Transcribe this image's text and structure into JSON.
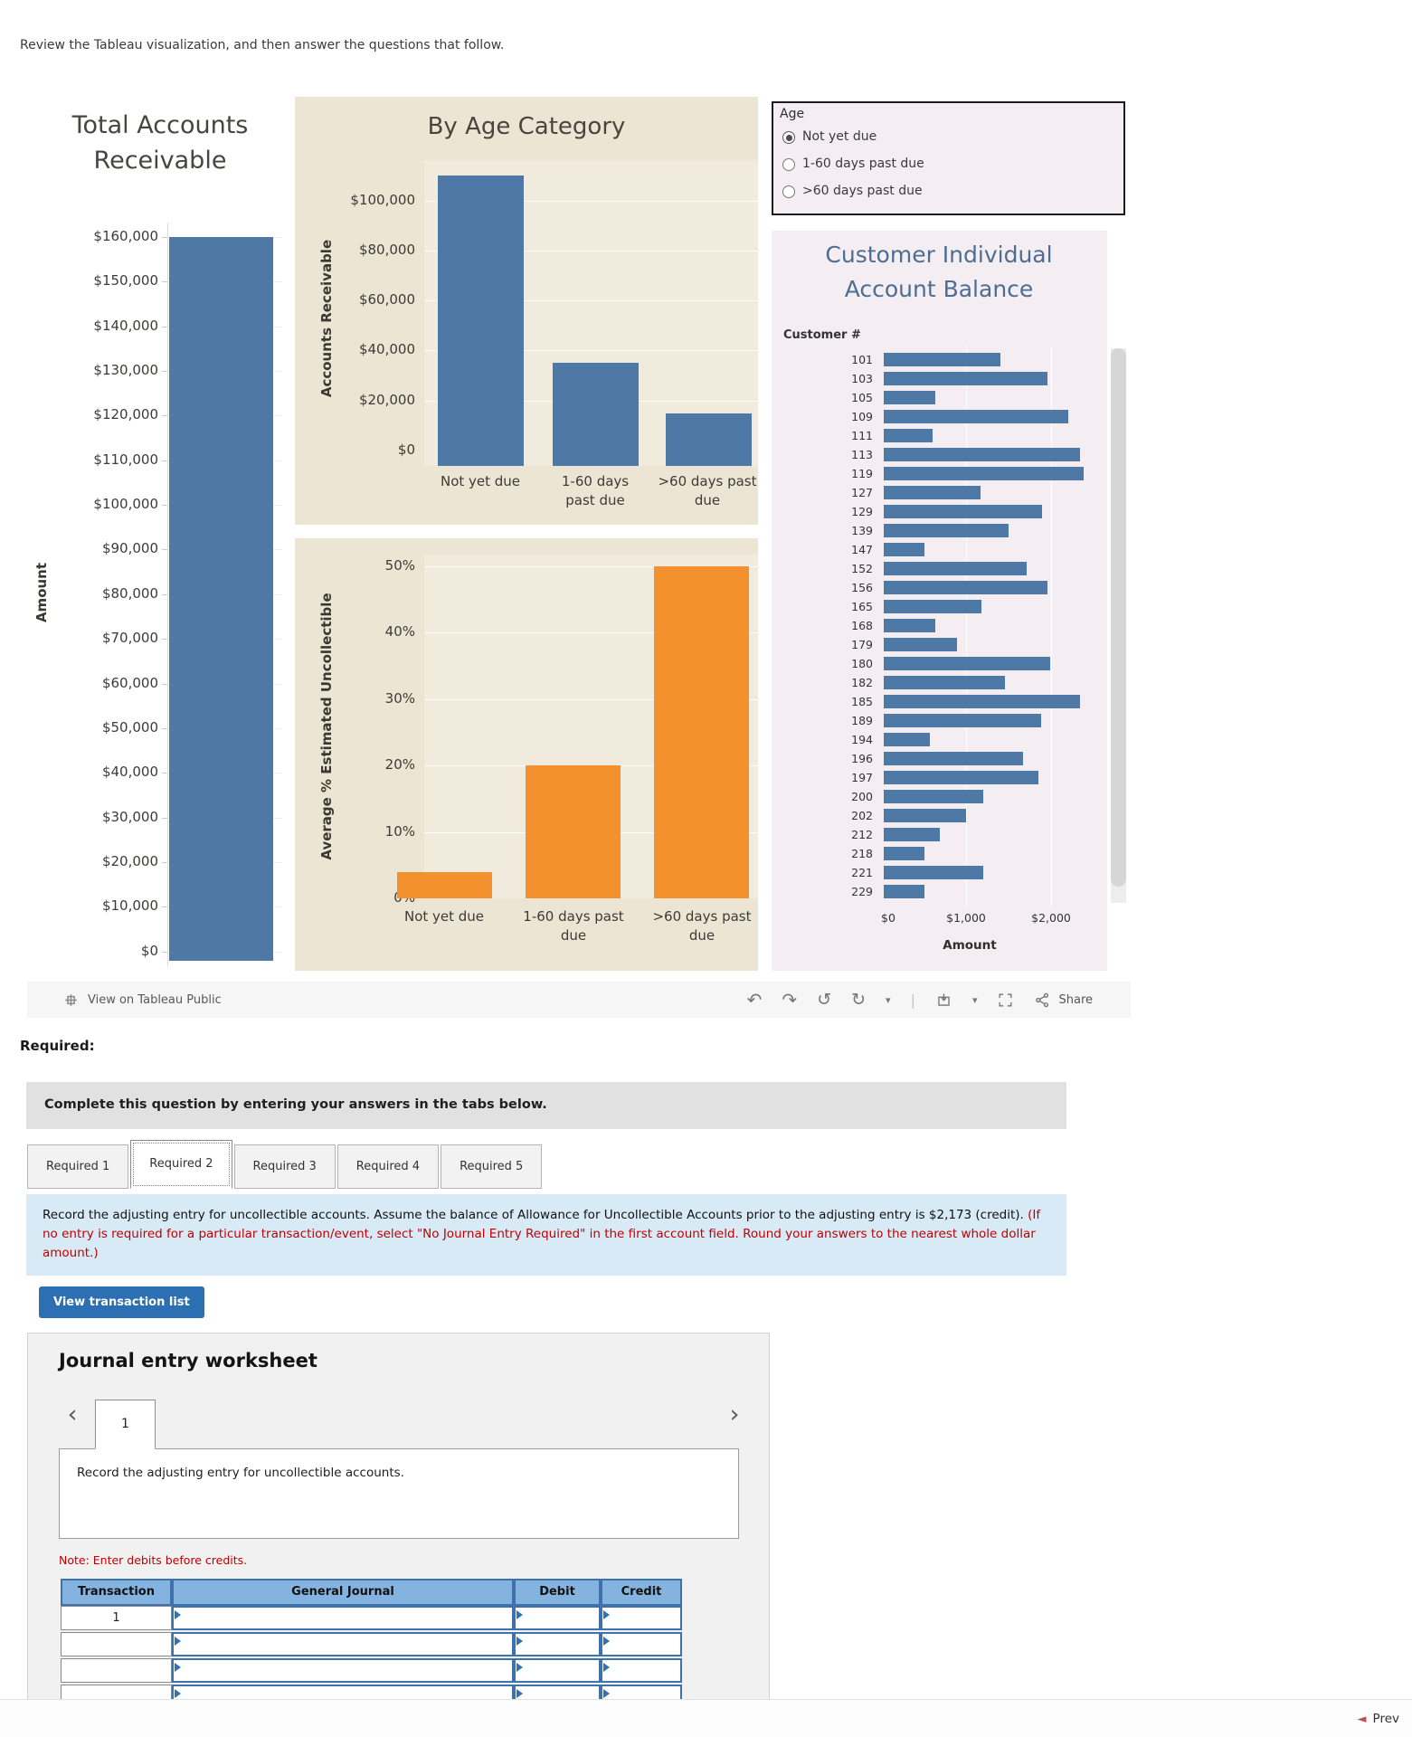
{
  "page": {
    "instruction": "Review the Tableau visualization, and then answer the questions that follow.",
    "required_label": "Required:",
    "banner": "Complete this question by entering your answers in the tabs below.",
    "prev_label": "Prev"
  },
  "colors": {
    "bar_blue": "#4e79a7",
    "bar_orange": "#f2912d",
    "beige_panel": "#ece5d4",
    "beige_plot": "#f0ebdc",
    "pink_panel": "#f4eef2",
    "table_header_blue": "#85b3df",
    "table_border_blue": "#3f72ab",
    "button_blue": "#2d6fb3",
    "info_box_blue": "#d9eaf7",
    "red_text": "#c00000"
  },
  "icons": {
    "chevron_left": "‹",
    "chevron_right": "›",
    "caret_down": "▾",
    "undo": "↶",
    "redo": "↷",
    "revert": "↺",
    "refresh": "↻",
    "prev_arrow": "◄",
    "toolbar_divider": "|"
  },
  "viz": {
    "toolbar": {
      "view_public_label": "View on Tableau Public",
      "share_label": "Share"
    },
    "age_filter": {
      "title": "Age",
      "options": [
        "Not yet due",
        "1-60 days past due",
        ">60 days past due"
      ],
      "selected_index": 0
    }
  },
  "chart_data": [
    {
      "id": "total_accounts_receivable",
      "type": "bar",
      "title": "Total Accounts Receivable",
      "ylabel": "Amount",
      "categories": [
        ""
      ],
      "values": [
        160000
      ],
      "ylim": [
        0,
        160000
      ],
      "ytick_step": 10000,
      "grid": true,
      "legend": false
    },
    {
      "id": "by_age_category",
      "type": "bar",
      "title": "By Age Category",
      "ylabel": "Accounts Receivable",
      "categories": [
        "Not yet due",
        "1-60 days past due",
        ">60 days past due"
      ],
      "categories_display": [
        [
          "Not yet due"
        ],
        [
          "1-60 days",
          "past due"
        ],
        [
          ">60 days past",
          "due"
        ]
      ],
      "values": [
        110000,
        35000,
        15000
      ],
      "ylim": [
        0,
        115000
      ],
      "ytick_step": 20000,
      "ytick_max": 100000
    },
    {
      "id": "average_pct_estimated_uncollectible",
      "type": "bar",
      "title": "",
      "ylabel": "Average % Estimated Uncollectible",
      "categories": [
        "Not yet due",
        "1-60 days past due",
        ">60 days past due"
      ],
      "categories_display": [
        [
          "Not yet due"
        ],
        [
          "1-60 days past",
          "due"
        ],
        [
          ">60 days past",
          "due"
        ]
      ],
      "values": [
        4,
        20,
        50
      ],
      "unit": "%",
      "ylim": [
        0,
        52
      ],
      "ytick_step": 10,
      "ytick_max": 50
    },
    {
      "id": "customer_individual_account_balance",
      "type": "bar",
      "orientation": "horizontal",
      "title": "Customer Individual Account Balance",
      "row_header": "Customer #",
      "xlabel": "Amount",
      "xlim": [
        0,
        2700
      ],
      "xticks": [
        0,
        1000,
        2000
      ],
      "categories": [
        "101",
        "103",
        "105",
        "109",
        "111",
        "113",
        "119",
        "127",
        "129",
        "139",
        "147",
        "152",
        "156",
        "165",
        "168",
        "179",
        "180",
        "182",
        "185",
        "189",
        "194",
        "196",
        "197",
        "200",
        "202",
        "212",
        "218",
        "221",
        "229"
      ],
      "values": [
        1430,
        2000,
        630,
        2250,
        600,
        2400,
        2440,
        1180,
        1930,
        1520,
        500,
        1750,
        2000,
        1190,
        630,
        890,
        2030,
        1480,
        2400,
        1920,
        560,
        1700,
        1890,
        1220,
        1010,
        690,
        500,
        1220,
        500
      ]
    }
  ],
  "tabs": {
    "items": [
      "Required 1",
      "Required 2",
      "Required 3",
      "Required 4",
      "Required 5"
    ],
    "active_index": 1
  },
  "question": {
    "text_black": "Record the adjusting entry for uncollectible accounts. Assume the balance of Allowance for Uncollectible Accounts prior to the adjusting entry is $2,173 (credit). ",
    "text_red": "(If no entry is required for a particular transaction/event, select \"No Journal Entry Required\" in the first account field. Round your answers to the nearest whole dollar amount.)",
    "view_transaction_button": "View transaction list"
  },
  "worksheet": {
    "title": "Journal entry worksheet",
    "page_tab": "1",
    "prompt": "Record the adjusting entry for uncollectible accounts.",
    "note": "Note: Enter debits before credits.",
    "table": {
      "headers": [
        "Transaction",
        "General Journal",
        "Debit",
        "Credit"
      ],
      "rows": [
        {
          "transaction": "1",
          "general_journal": "",
          "debit": "",
          "credit": ""
        },
        {
          "transaction": "",
          "general_journal": "",
          "debit": "",
          "credit": ""
        },
        {
          "transaction": "",
          "general_journal": "",
          "debit": "",
          "credit": ""
        },
        {
          "transaction": "",
          "general_journal": "",
          "debit": "",
          "credit": ""
        }
      ]
    }
  }
}
